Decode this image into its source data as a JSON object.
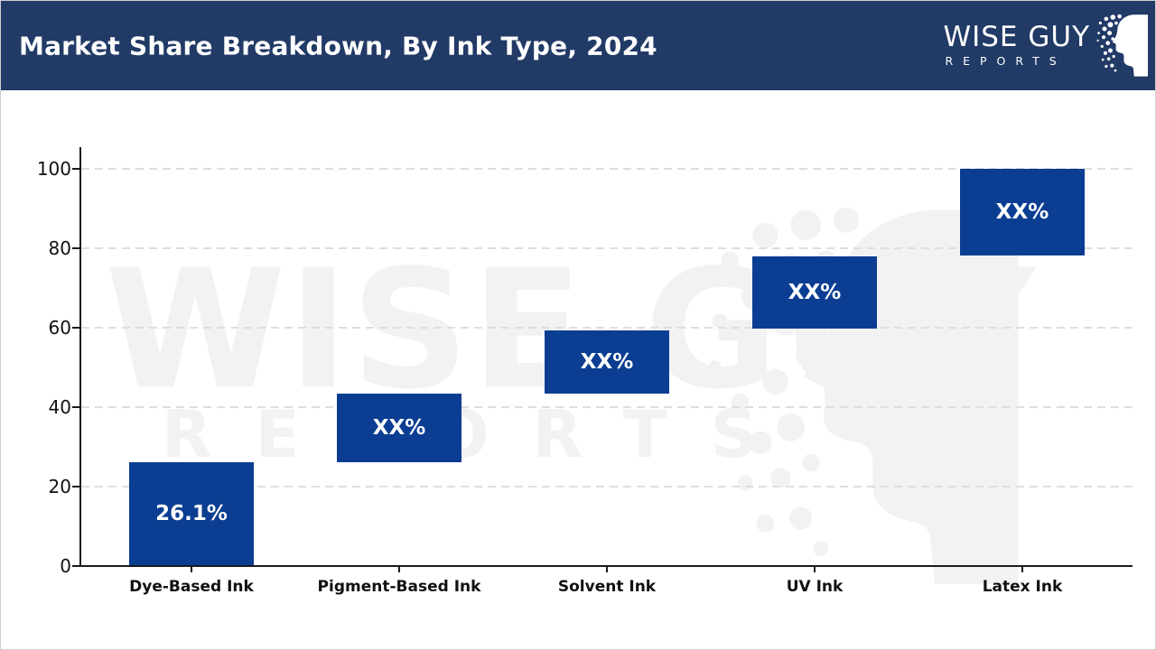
{
  "header": {
    "background": "#213a66",
    "title": "Market Share Breakdown, By Ink Type, 2024",
    "logo": {
      "line1": "WISE GUY",
      "line2": "REPORTS"
    }
  },
  "watermark": {
    "line1": "WISE GUY",
    "line2": "REPORTS"
  },
  "chart_data": {
    "type": "bar",
    "subtype": "floating-waterfall",
    "title": "Market Share Breakdown, By Ink Type, 2024",
    "categories": [
      "Dye-Based Ink",
      "Pigment-Based Ink",
      "Solvent Ink",
      "UV Ink",
      "Latex Ink"
    ],
    "segments": [
      [
        0,
        26.1
      ],
      [
        26.1,
        43.3
      ],
      [
        43.4,
        59.2
      ],
      [
        59.7,
        77.9
      ],
      [
        78.2,
        100
      ]
    ],
    "bar_labels": [
      "26.1%",
      "XX%",
      "XX%",
      "XX%",
      "XX%"
    ],
    "yticks": [
      0,
      20,
      40,
      60,
      80,
      100
    ],
    "ylim": [
      0,
      105
    ],
    "grid": "horizontal-dashed",
    "legend": "none",
    "bar_color": "#0b3e92",
    "bar_label_color": "#ffffff",
    "axis_color": "#1a1a1a",
    "grid_color": "#dedede"
  }
}
